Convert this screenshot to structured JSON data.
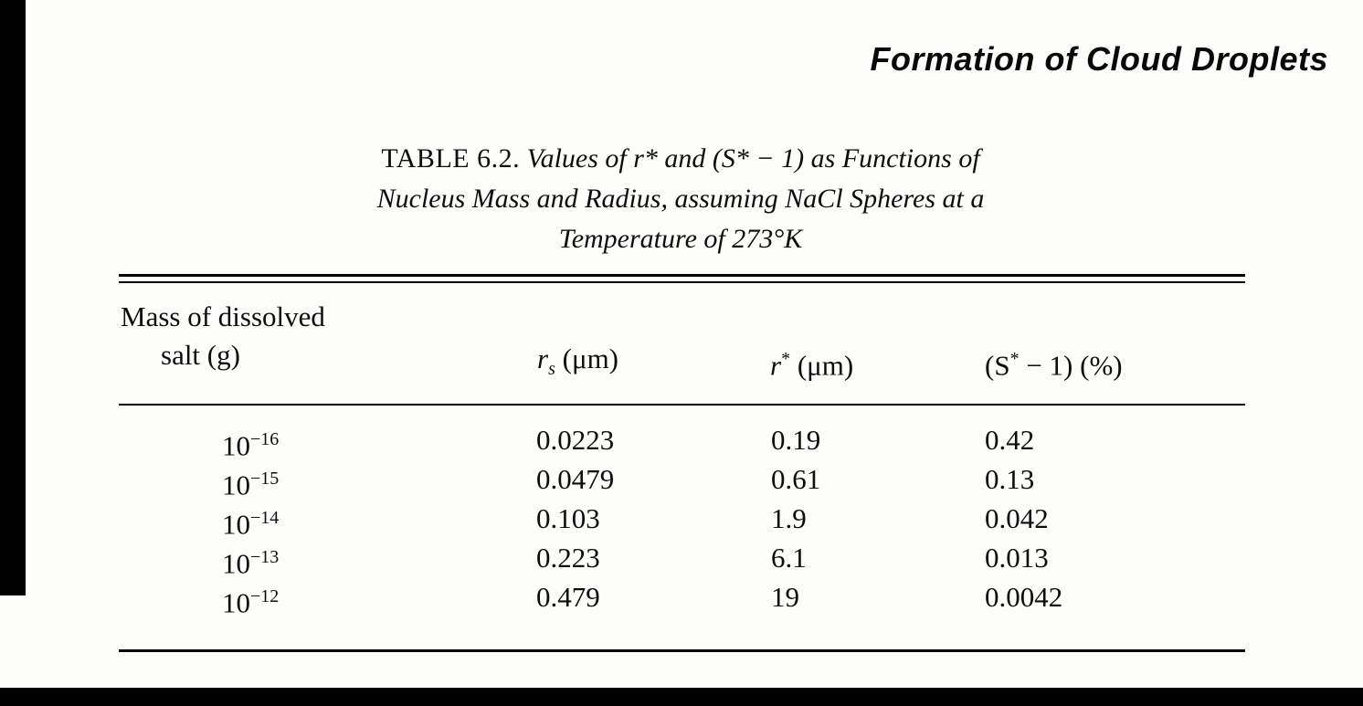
{
  "colors": {
    "ink": "#0d0d0d",
    "paper": "#fdfdfc",
    "scan_border": "#000000"
  },
  "page": {
    "running_head": "Formation of Cloud Droplets"
  },
  "table": {
    "caption": {
      "label": "TABLE 6.2.",
      "line1": "Values of r* and (S* − 1) as Functions of",
      "line2": "Nucleus Mass and Radius, assuming NaCl Spheres at a",
      "line3": "Temperature of 273°K"
    },
    "headers": {
      "col1_line1": "Mass of dissolved",
      "col1_line2": "salt (g)",
      "col2_sym": "r",
      "col2_sub": "s",
      "col2_unit": " (μm)",
      "col3_sym": "r",
      "col3_sup": "*",
      "col3_unit": " (μm)",
      "col4_open": "(S",
      "col4_sup": "*",
      "col4_close": " − 1) (%)"
    },
    "rows": [
      {
        "mass_base": "10",
        "mass_exp": "−16",
        "rs": "0.0223",
        "rstar": "0.19",
        "s1": "0.42"
      },
      {
        "mass_base": "10",
        "mass_exp": "−15",
        "rs": "0.0479",
        "rstar": "0.61",
        "s1": "0.13"
      },
      {
        "mass_base": "10",
        "mass_exp": "−14",
        "rs": "0.103",
        "rstar": "1.9",
        "s1": "0.042"
      },
      {
        "mass_base": "10",
        "mass_exp": "−13",
        "rs": "0.223",
        "rstar": "6.1",
        "s1": "0.013"
      },
      {
        "mass_base": "10",
        "mass_exp": "−12",
        "rs": "0.479",
        "rstar": "19",
        "s1": "0.0042"
      }
    ]
  }
}
